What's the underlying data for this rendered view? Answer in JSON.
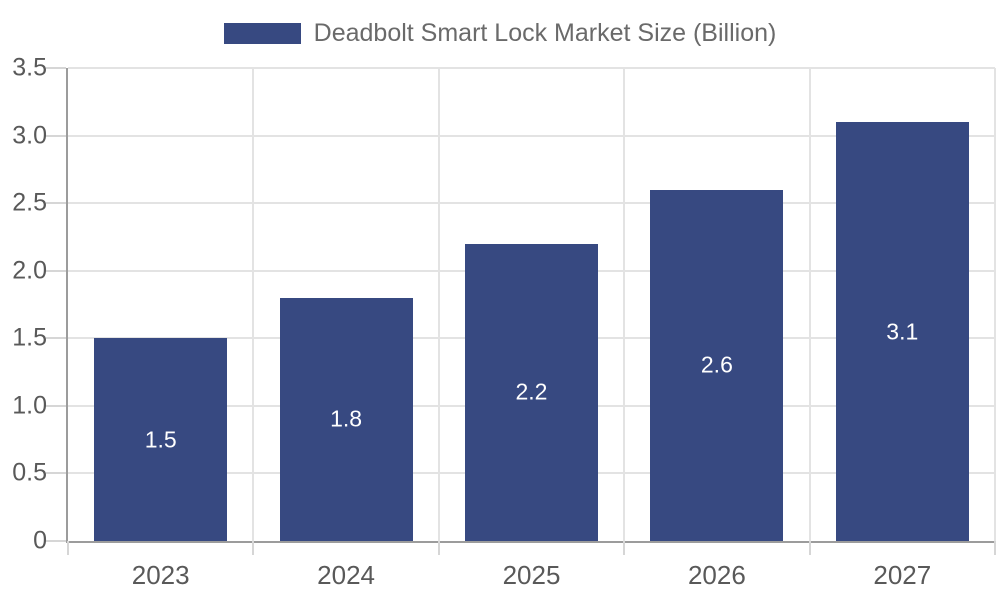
{
  "colors": {
    "bar": "#374981",
    "grid": "#e3e3e3",
    "axis": "#9c9c9c",
    "tick": "#d6d6d6",
    "tick_text": "#595959",
    "title_text": "#6a6a6a",
    "bar_label": "#ffffff"
  },
  "chart_data": {
    "type": "bar",
    "title": "Deadbolt Smart Lock Market Size (Billion)",
    "legend": [
      "Deadbolt Smart Lock Market Size (Billion)"
    ],
    "legend_position": "top-center",
    "categories": [
      "2023",
      "2024",
      "2025",
      "2026",
      "2027"
    ],
    "values": [
      1.5,
      1.8,
      2.2,
      2.6,
      3.1
    ],
    "bar_value_labels": [
      "1.5",
      "1.8",
      "2.2",
      "2.6",
      "3.1"
    ],
    "xlabel": "",
    "ylabel": "",
    "ylim": [
      0,
      3.5
    ],
    "y_tick_values": [
      0,
      0.5,
      1,
      1.5,
      2,
      2.5,
      3,
      3.5
    ],
    "y_tick_labels": [
      "0",
      "0.5",
      "1.0",
      "1.5",
      "2.0",
      "2.5",
      "3.0",
      "3.5"
    ],
    "grid": true
  }
}
